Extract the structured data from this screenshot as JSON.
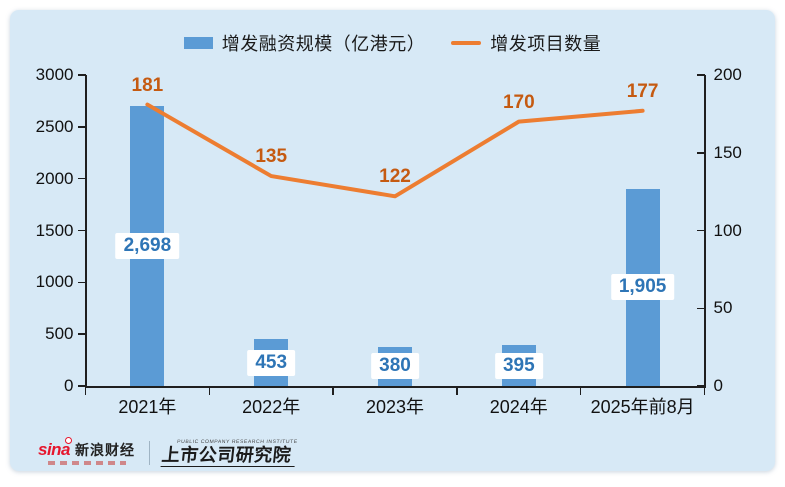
{
  "colors": {
    "bar": "#5B9BD5",
    "line": "#ED7D31",
    "bar_label": "#2E75B6",
    "line_label": "#C55A11",
    "card_background": "#D7E9F6",
    "axis": "#1f1f1f"
  },
  "chart_data": {
    "type": "bar+line combo",
    "title": "",
    "categories": [
      "2021年",
      "2022年",
      "2023年",
      "2024年",
      "2025年前8月"
    ],
    "series": [
      {
        "name": "增发融资规模（亿港元）",
        "type": "bar",
        "axis": "left",
        "values": [
          2698,
          453,
          380,
          395,
          1905
        ],
        "value_labels": [
          "2,698",
          "453",
          "380",
          "395",
          "1,905"
        ]
      },
      {
        "name": "增发项目数量",
        "type": "line",
        "axis": "right",
        "values": [
          181,
          135,
          122,
          170,
          177
        ],
        "value_labels": [
          "181",
          "135",
          "122",
          "170",
          "177"
        ]
      }
    ],
    "left_axis": {
      "min": 0,
      "max": 3000,
      "step": 500,
      "ticks": [
        "0",
        "500",
        "1000",
        "1500",
        "2000",
        "2500",
        "3000"
      ]
    },
    "right_axis": {
      "min": 0,
      "max": 200,
      "step": 50,
      "ticks": [
        "0",
        "50",
        "100",
        "150",
        "200"
      ]
    },
    "legend_position": "top-center",
    "grid": false
  },
  "footer": {
    "sina_logo_text": "sina",
    "sina_brand": "新浪财经",
    "institute_en": "PUBLIC COMPANY RESEARCH INSTITUTE",
    "institute_name": "上市公司研究院"
  }
}
